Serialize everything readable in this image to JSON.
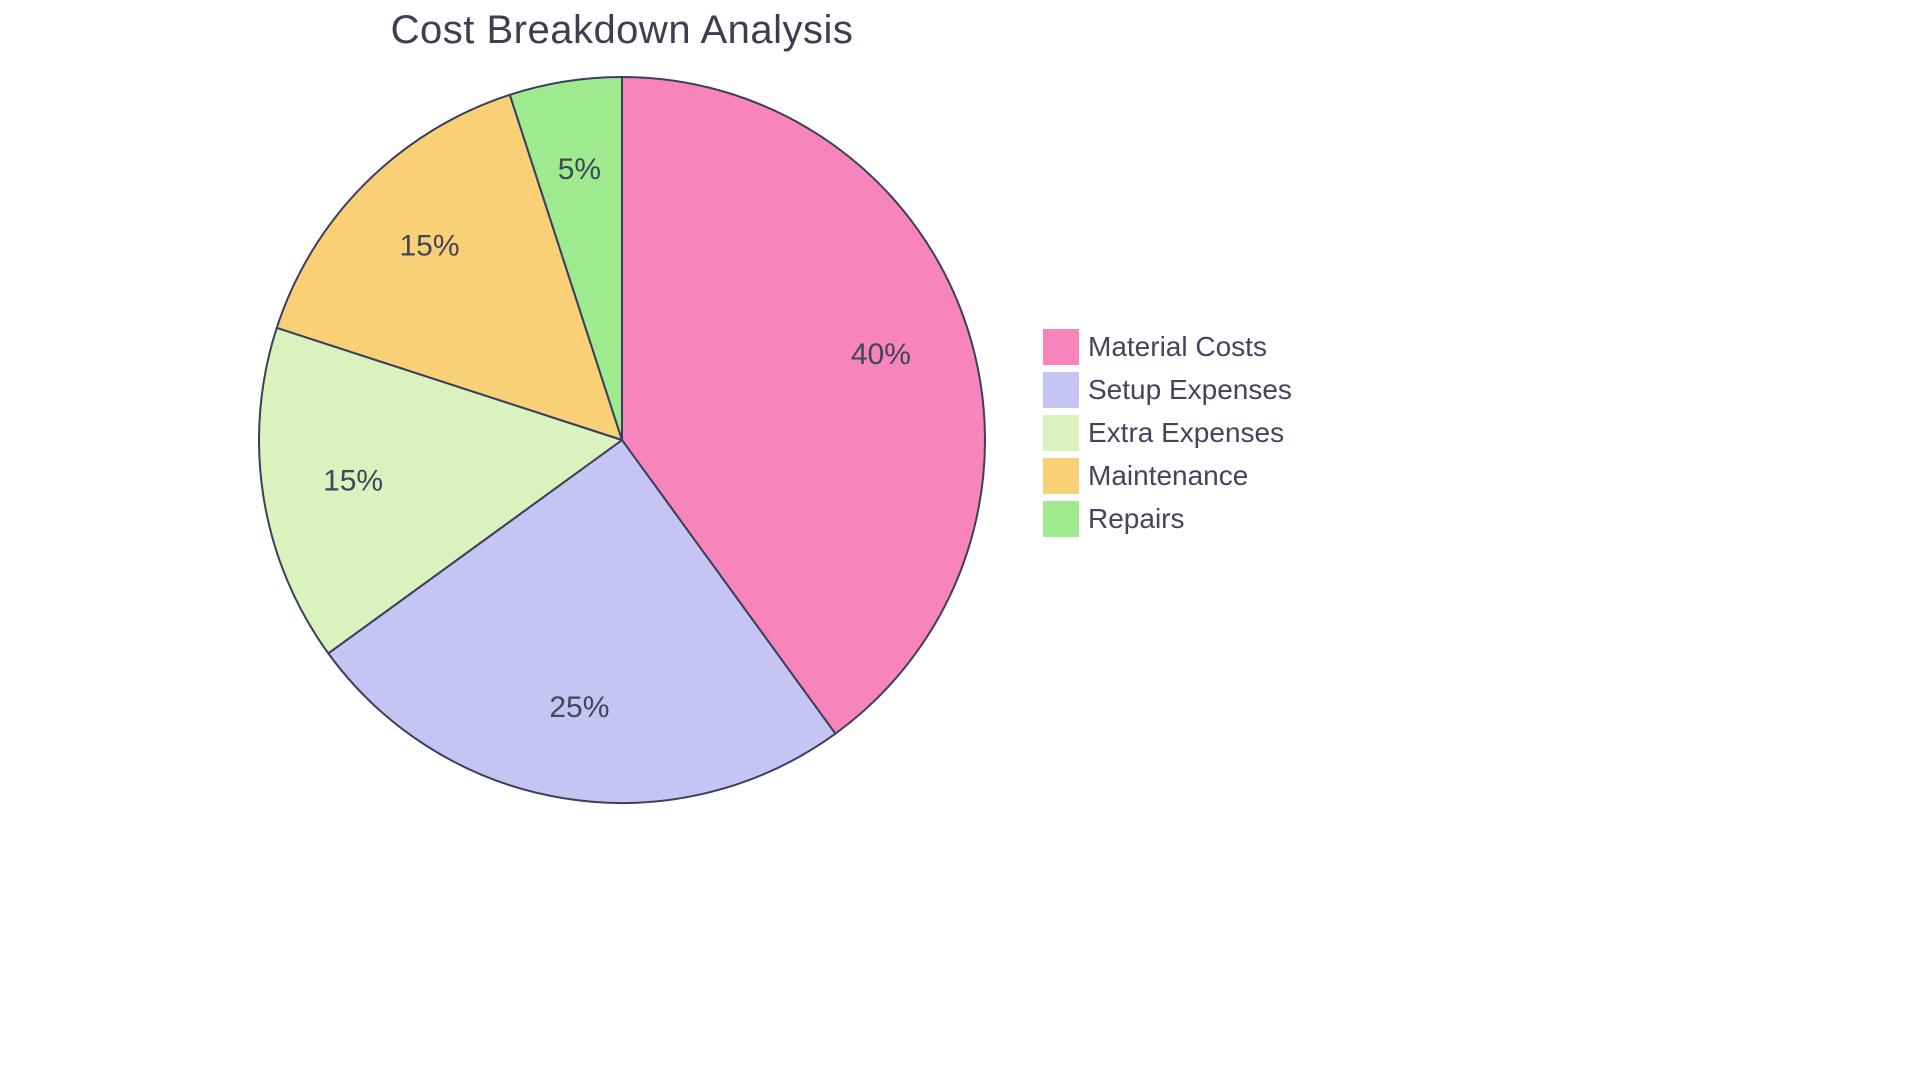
{
  "chart_data": {
    "type": "pie",
    "title": "Cost Breakdown Analysis",
    "labels": [
      "Material Costs",
      "Setup Expenses",
      "Extra Expenses",
      "Maintenance",
      "Repairs"
    ],
    "values": [
      40,
      25,
      15,
      15,
      5
    ],
    "value_labels": [
      "40%",
      "25%",
      "15%",
      "15%",
      "5%"
    ],
    "colors": [
      "#F884BC",
      "#C6C4F2",
      "#D9F2BE",
      "#FAD077",
      "#9DEB8E"
    ],
    "slice_border_color": "#3A3F5C",
    "label_text_color": "#42465A",
    "title_color": "#3B3F4F",
    "start_angle": "top",
    "direction": "clockwise",
    "legend_position": "right",
    "background_color": "#FFFFFF"
  }
}
